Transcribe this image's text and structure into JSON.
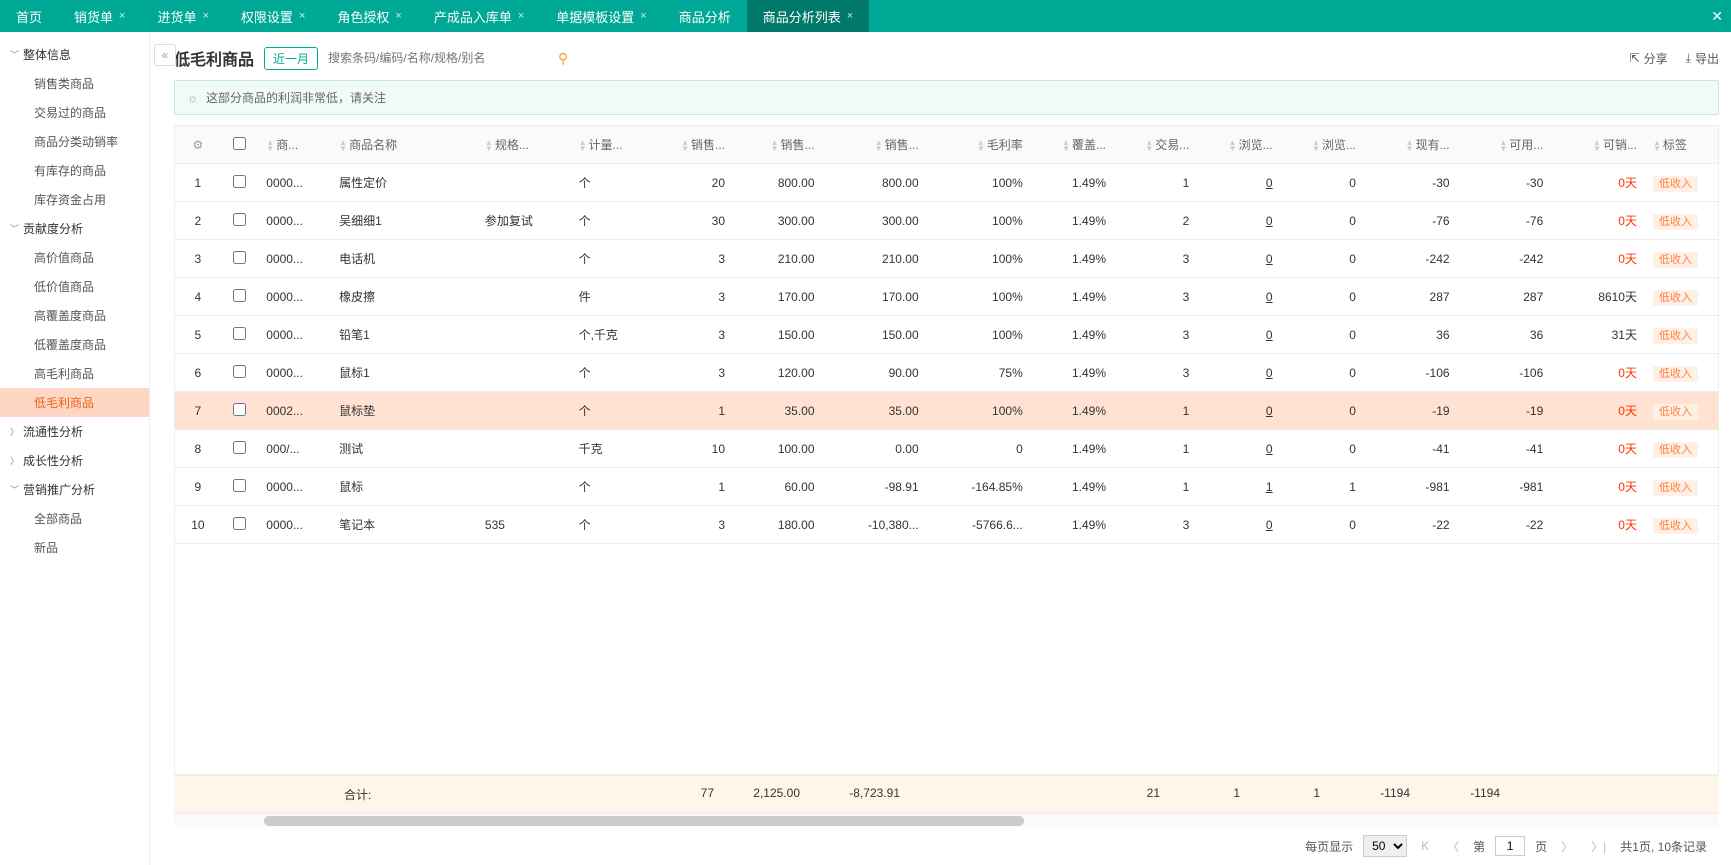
{
  "tabs": [
    {
      "label": "首页",
      "closable": false
    },
    {
      "label": "销货单",
      "closable": true
    },
    {
      "label": "进货单",
      "closable": true
    },
    {
      "label": "权限设置",
      "closable": true
    },
    {
      "label": "角色授权",
      "closable": true
    },
    {
      "label": "产成品入库单",
      "closable": true
    },
    {
      "label": "单据模板设置",
      "closable": true
    },
    {
      "label": "商品分析",
      "closable": false
    },
    {
      "label": "商品分析列表",
      "closable": true,
      "active": true
    }
  ],
  "sidebar": [
    {
      "type": "group",
      "label": "整体信息",
      "open": true
    },
    {
      "type": "item",
      "label": "销售类商品"
    },
    {
      "type": "item",
      "label": "交易过的商品"
    },
    {
      "type": "item",
      "label": "商品分类动销率"
    },
    {
      "type": "item",
      "label": "有库存的商品"
    },
    {
      "type": "item",
      "label": "库存资金占用"
    },
    {
      "type": "group",
      "label": "贡献度分析",
      "open": true
    },
    {
      "type": "item",
      "label": "高价值商品"
    },
    {
      "type": "item",
      "label": "低价值商品"
    },
    {
      "type": "item",
      "label": "高覆盖度商品"
    },
    {
      "type": "item",
      "label": "低覆盖度商品"
    },
    {
      "type": "item",
      "label": "高毛利商品"
    },
    {
      "type": "item",
      "label": "低毛利商品",
      "active": true
    },
    {
      "type": "group",
      "label": "流通性分析",
      "open": false
    },
    {
      "type": "group",
      "label": "成长性分析",
      "open": false
    },
    {
      "type": "group",
      "label": "营销推广分析",
      "open": true
    },
    {
      "type": "item",
      "label": "全部商品"
    },
    {
      "type": "item",
      "label": "新品"
    }
  ],
  "header": {
    "title": "低毛利商品",
    "period_tag": "近一月",
    "search_placeholder": "搜索条码/编码/名称/规格/别名",
    "share": "分享",
    "export": "导出"
  },
  "notice": "这部分商品的利润非常低，请关注",
  "columns": [
    "",
    "",
    "商...",
    "商品名称",
    "规格...",
    "计量...",
    "销售...",
    "销售...",
    "销售...",
    "毛利率",
    "覆盖...",
    "交易...",
    "浏览...",
    "浏览...",
    "现有...",
    "可用...",
    "可销...",
    "标签"
  ],
  "col_align": [
    "center",
    "center",
    "left",
    "left",
    "left",
    "left",
    "right",
    "right",
    "right",
    "right",
    "right",
    "right",
    "right",
    "right",
    "right",
    "right",
    "right",
    "left"
  ],
  "col_sortable": [
    false,
    false,
    true,
    true,
    true,
    true,
    true,
    true,
    true,
    true,
    true,
    true,
    true,
    true,
    true,
    true,
    true,
    true
  ],
  "rows": [
    {
      "n": 1,
      "code": "0000...",
      "name": "属性定价",
      "spec": "",
      "unit": "个",
      "c1": "20",
      "c2": "800.00",
      "c3": "800.00",
      "rate": "100%",
      "cov": "1.49%",
      "trade": "1",
      "view1": "0",
      "view1_u": true,
      "view2": "0",
      "stock": "-30",
      "avail": "-30",
      "days": "0天",
      "days_red": true,
      "tag": "低收入"
    },
    {
      "n": 2,
      "code": "0000...",
      "name": "吴细细1",
      "spec": "参加复试",
      "unit": "个",
      "c1": "30",
      "c2": "300.00",
      "c3": "300.00",
      "rate": "100%",
      "cov": "1.49%",
      "trade": "2",
      "view1": "0",
      "view1_u": true,
      "view2": "0",
      "stock": "-76",
      "avail": "-76",
      "days": "0天",
      "days_red": true,
      "tag": "低收入"
    },
    {
      "n": 3,
      "code": "0000...",
      "name": "电话机",
      "spec": "",
      "unit": "个",
      "c1": "3",
      "c2": "210.00",
      "c3": "210.00",
      "rate": "100%",
      "cov": "1.49%",
      "trade": "3",
      "view1": "0",
      "view1_u": true,
      "view2": "0",
      "stock": "-242",
      "avail": "-242",
      "days": "0天",
      "days_red": true,
      "tag": "低收入"
    },
    {
      "n": 4,
      "code": "0000...",
      "name": "橡皮擦",
      "spec": "",
      "unit": "件",
      "c1": "3",
      "c2": "170.00",
      "c3": "170.00",
      "rate": "100%",
      "cov": "1.49%",
      "trade": "3",
      "view1": "0",
      "view1_u": true,
      "view2": "0",
      "stock": "287",
      "avail": "287",
      "days": "8610天",
      "days_red": false,
      "tag": "低收入"
    },
    {
      "n": 5,
      "code": "0000...",
      "name": "铅笔1",
      "spec": "",
      "unit": "个,千克",
      "c1": "3",
      "c2": "150.00",
      "c3": "150.00",
      "rate": "100%",
      "cov": "1.49%",
      "trade": "3",
      "view1": "0",
      "view1_u": true,
      "view2": "0",
      "stock": "36",
      "avail": "36",
      "days": "31天",
      "days_red": false,
      "tag": "低收入"
    },
    {
      "n": 6,
      "code": "0000...",
      "name": "鼠标1",
      "spec": "",
      "unit": "个",
      "c1": "3",
      "c2": "120.00",
      "c3": "90.00",
      "rate": "75%",
      "cov": "1.49%",
      "trade": "3",
      "view1": "0",
      "view1_u": true,
      "view2": "0",
      "stock": "-106",
      "avail": "-106",
      "days": "0天",
      "days_red": true,
      "tag": "低收入"
    },
    {
      "n": 7,
      "code": "0002...",
      "name": "鼠标垫",
      "spec": "",
      "unit": "个",
      "c1": "1",
      "c2": "35.00",
      "c3": "35.00",
      "rate": "100%",
      "cov": "1.49%",
      "trade": "1",
      "view1": "0",
      "view1_u": true,
      "view2": "0",
      "stock": "-19",
      "avail": "-19",
      "days": "0天",
      "days_red": true,
      "tag": "低收入",
      "hl": true
    },
    {
      "n": 8,
      "code": "000/...",
      "name": "测试",
      "spec": "",
      "unit": "千克",
      "c1": "10",
      "c2": "100.00",
      "c3": "0.00",
      "rate": "0",
      "cov": "1.49%",
      "trade": "1",
      "view1": "0",
      "view1_u": true,
      "view2": "0",
      "stock": "-41",
      "avail": "-41",
      "days": "0天",
      "days_red": true,
      "tag": "低收入"
    },
    {
      "n": 9,
      "code": "0000...",
      "name": "鼠标",
      "spec": "",
      "unit": "个",
      "c1": "1",
      "c2": "60.00",
      "c3": "-98.91",
      "rate": "-164.85%",
      "cov": "1.49%",
      "trade": "1",
      "view1": "1",
      "view1_u": true,
      "view2": "1",
      "stock": "-981",
      "avail": "-981",
      "days": "0天",
      "days_red": true,
      "tag": "低收入"
    },
    {
      "n": 10,
      "code": "0000...",
      "name": "笔记本",
      "spec": "535",
      "unit": "个",
      "c1": "3",
      "c2": "180.00",
      "c3": "-10,380...",
      "rate": "-5766.6...",
      "cov": "1.49%",
      "trade": "3",
      "view1": "0",
      "view1_u": true,
      "view2": "0",
      "stock": "-22",
      "avail": "-22",
      "days": "0天",
      "days_red": true,
      "tag": "低收入"
    }
  ],
  "totals": {
    "label": "合计:",
    "c1": "77",
    "c2": "2,125.00",
    "c3": "-8,723.91",
    "trade": "21",
    "view1": "1",
    "view2": "1",
    "stock": "-1194",
    "avail": "-1194"
  },
  "pager": {
    "per_page_label": "每页显示",
    "per_page": "50",
    "page_prefix": "第",
    "page": "1",
    "page_suffix": "页",
    "summary": "共1页, 10条记录"
  }
}
